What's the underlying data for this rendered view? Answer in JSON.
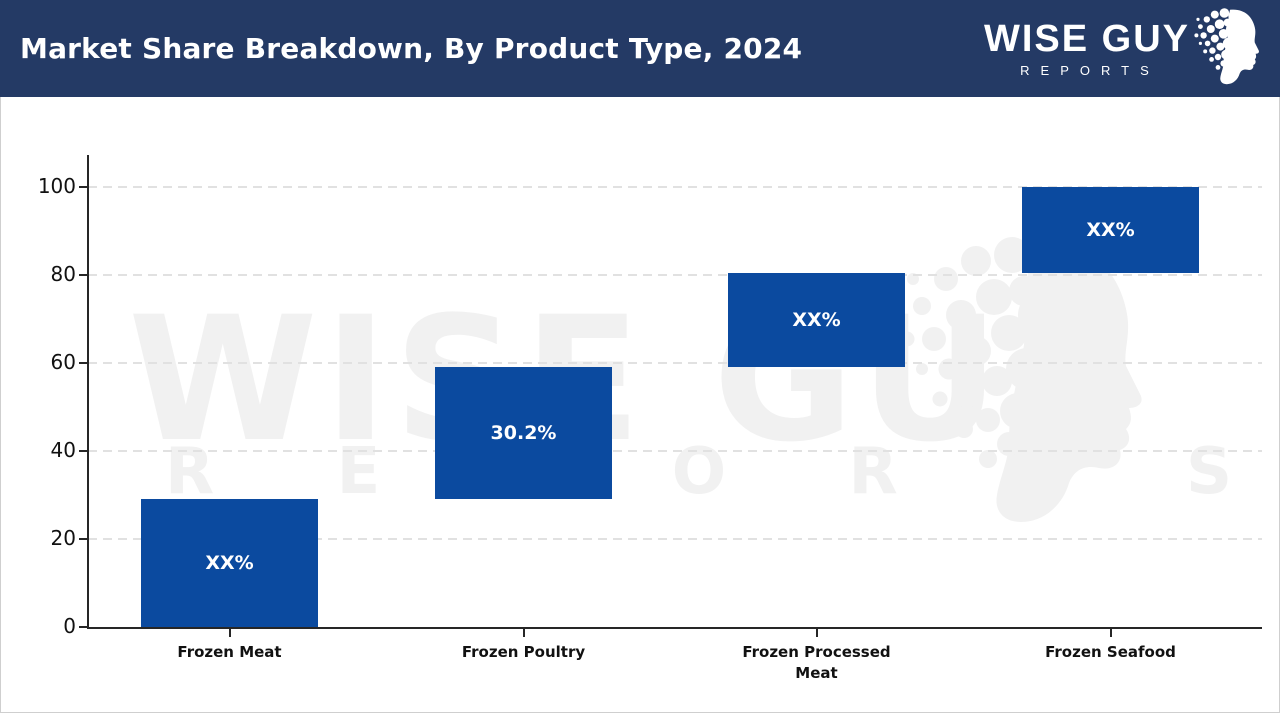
{
  "header": {
    "title": "Market Share Breakdown, By Product Type, 2024",
    "logo": {
      "line1": "WISE GUY",
      "line2": "REPORTS"
    }
  },
  "watermark": {
    "line1": "WISE GU",
    "line2": "R E P O R T S"
  },
  "colors": {
    "header_bg": "#243a65",
    "bar": "#0b4a9f",
    "axis": "#262626",
    "grid": "#e1e1e1",
    "watermark": "#f1f1f1",
    "bar_label": "#ffffff"
  },
  "chart_data": {
    "type": "bar",
    "subtype": "waterfall",
    "title": "Market Share Breakdown, By Product Type, 2024",
    "xlabel": "",
    "ylabel": "",
    "categories": [
      "Frozen Meat",
      "Frozen Poultry",
      "Frozen Processed Meat",
      "Frozen Seafood"
    ],
    "series": [
      {
        "name": "Market Share (%)",
        "base": [
          0,
          29,
          59.2,
          80.5
        ],
        "values": [
          29,
          30.2,
          21.3,
          19.5
        ]
      }
    ],
    "bar_labels": [
      "XX%",
      "30.2%",
      "XX%",
      "XX%"
    ],
    "ylim": [
      0,
      100
    ],
    "yticks": [
      0,
      20,
      40,
      60,
      80,
      100
    ],
    "grid": "horizontal-dashed",
    "legend": "none",
    "bar_color": "#0b4a9f"
  }
}
